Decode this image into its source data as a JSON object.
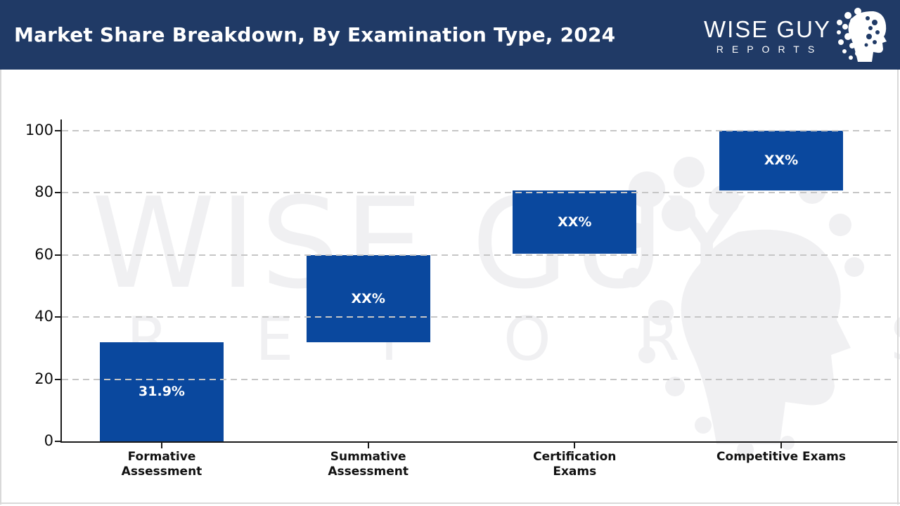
{
  "header": {
    "title": "Market Share Breakdown, By Examination Type, 2024",
    "logo_line1": "WISE GUY",
    "logo_line2": "REPORTS"
  },
  "watermark": {
    "line1": "WISE GUY",
    "line2": "R E P O R T S"
  },
  "colors": {
    "header_bg": "#203a66",
    "bar": "#0a489e",
    "grid": "#c6c6c6",
    "axis": "#1a1a1a",
    "watermark": "#f0f0f2",
    "bar_label": "#ffffff"
  },
  "chart_data": {
    "type": "bar",
    "variant": "floating-segment percentage breakdown (waterfall style)",
    "title": "Market Share Breakdown, By Examination Type, 2024",
    "xlabel": "",
    "ylabel": "",
    "ylim": [
      0,
      100
    ],
    "yticks": [
      0,
      20,
      40,
      60,
      80,
      100
    ],
    "grid": "horizontal dashed, drawn above bars",
    "legend": "none",
    "categories": [
      "Formative Assessment",
      "Summative Assessment",
      "Certification Exams",
      "Competitive Exams"
    ],
    "category_label_lines": [
      [
        "Formative",
        "Assessment"
      ],
      [
        "Summative",
        "Assessment"
      ],
      [
        "Certification",
        "Exams"
      ],
      [
        "Competitive Exams"
      ]
    ],
    "segments": [
      {
        "category": "Formative Assessment",
        "from": 0,
        "to": 31.9,
        "label": "31.9%"
      },
      {
        "category": "Summative Assessment",
        "from": 31.9,
        "to": 60,
        "label": "XX%"
      },
      {
        "category": "Certification Exams",
        "from": 60.5,
        "to": 80.8,
        "label": "XX%"
      },
      {
        "category": "Competitive Exams",
        "from": 80.8,
        "to": 100,
        "label": "XX%"
      }
    ]
  }
}
